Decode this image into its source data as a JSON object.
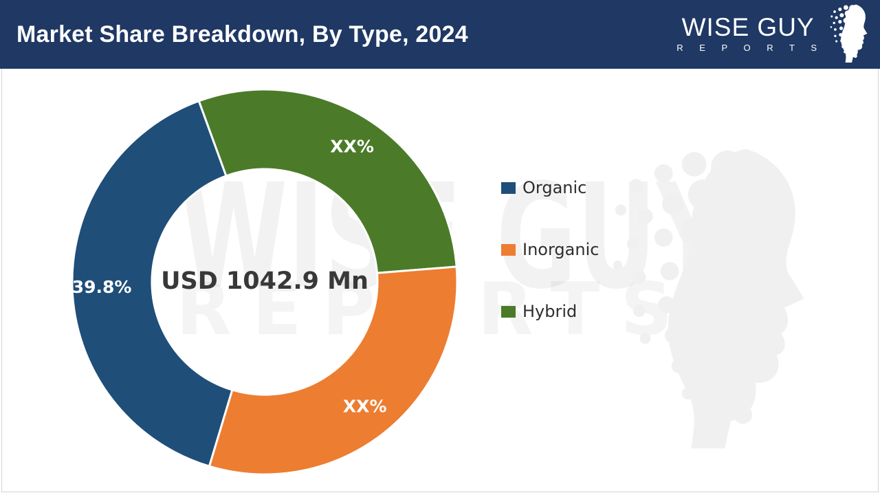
{
  "header": {
    "title": "Market Share Breakdown, By Type, 2024",
    "logo_line1": "WISE GUY",
    "logo_line2": "R E P O R T S"
  },
  "watermark": {
    "line1": "WISE GUY",
    "line2": "REPORTS"
  },
  "center_label": "USD 1042.9 Mn",
  "legend": {
    "items": [
      {
        "label": "Organic",
        "color": "#1F4E79"
      },
      {
        "label": "Inorganic",
        "color": "#ED7D31"
      },
      {
        "label": "Hybrid",
        "color": "#4B7B29"
      }
    ]
  },
  "chart_data": {
    "type": "pie",
    "variant": "donut",
    "title": "Market Share Breakdown, By Type, 2024",
    "center_total_label": "USD 1042.9 Mn",
    "legend_position": "right",
    "grid": false,
    "start_angle_deg_clockwise_from_top": -20,
    "draw_order": [
      "Hybrid",
      "Inorganic",
      "Organic"
    ],
    "series": [
      {
        "name": "Organic",
        "value_pct": 39.8,
        "display_label": "39.8%",
        "color": "#1F4E79",
        "label_radius": 237
      },
      {
        "name": "Inorganic",
        "value_pct": 30.9,
        "display_label": "XX%",
        "color": "#ED7D31",
        "label_radius": 232
      },
      {
        "name": "Hybrid",
        "value_pct": 29.3,
        "display_label": "XX%",
        "color": "#4B7B29",
        "label_radius": 235
      }
    ],
    "geometry": {
      "cx": 385,
      "cy": 410,
      "outer_radius": 280,
      "inner_radius": 164
    },
    "colors": {
      "header_navy": "#1F3864",
      "separator": "#ffffff"
    }
  }
}
